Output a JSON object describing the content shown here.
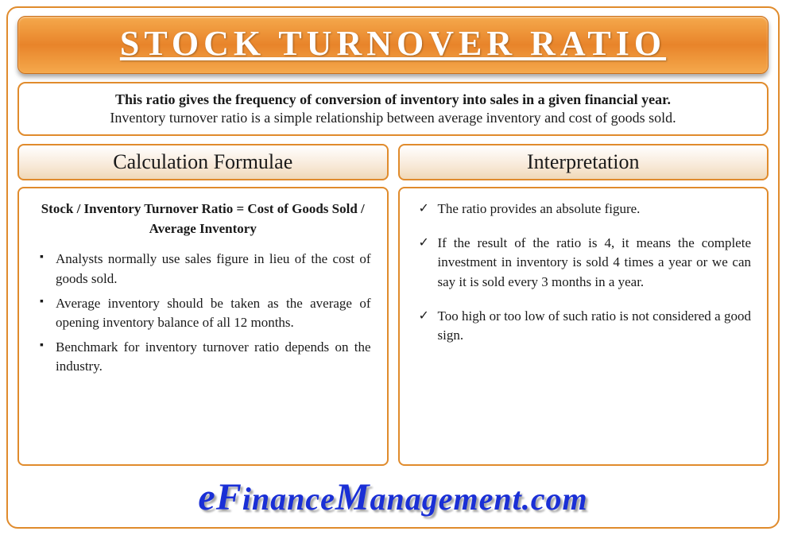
{
  "title": "STOCK TURNOVER RATIO",
  "description": {
    "line1": "This ratio gives the frequency of conversion of inventory into sales in a given financial year.",
    "line2": "Inventory turnover ratio is a simple relationship between average inventory and cost of goods sold."
  },
  "colors": {
    "border": "#e08b2c",
    "title_gradient_top": "#f5a94c",
    "title_gradient_mid": "#e8842a",
    "header_gradient_bottom": "#f0d9b8",
    "text": "#1a1a1a",
    "footer": "#1a2fd6"
  },
  "left": {
    "header": "Calculation Formulae",
    "formula": "Stock / Inventory Turnover Ratio = Cost of Goods Sold / Average Inventory",
    "bullets": [
      "Analysts normally use sales figure in lieu of the cost of goods sold.",
      "Average inventory should be taken as the average of opening inventory balance of all 12 months.",
      "Benchmark for inventory turnover ratio depends on the industry."
    ]
  },
  "right": {
    "header": "Interpretation",
    "checks": [
      "The ratio provides an absolute figure.",
      "If the result of the ratio is 4, it means the complete investment in inventory is sold 4 times a year or we can say it is sold every 3 months in a year.",
      "Too high or too low of such ratio is not considered a good sign."
    ]
  },
  "footer": "eFinanceManagement.com"
}
